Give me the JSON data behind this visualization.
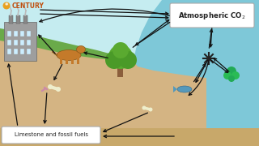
{
  "bg_sky": "#c5ecf0",
  "bg_land_color": "#6aaa4a",
  "bg_sand_color": "#d4b483",
  "bg_water_color": "#7ec8d8",
  "label_co2": "Atmospheric CO₂",
  "label_limestone": "Limestone and fossil fuels",
  "century_text": "CENTURY",
  "arrow_color": "#111111",
  "cow_color": "#c47a2a",
  "tree_trunk": "#8B5E3C",
  "tree_canopy": "#5aaa30",
  "tree_dark": "#4a9a28",
  "factory_body": "#9e9e9e",
  "factory_window": "#cceeff",
  "bone_color": "#eeeecc",
  "fish_color": "#5599bb",
  "seaweed_color": "#22aa55",
  "hub_color": "#222222"
}
